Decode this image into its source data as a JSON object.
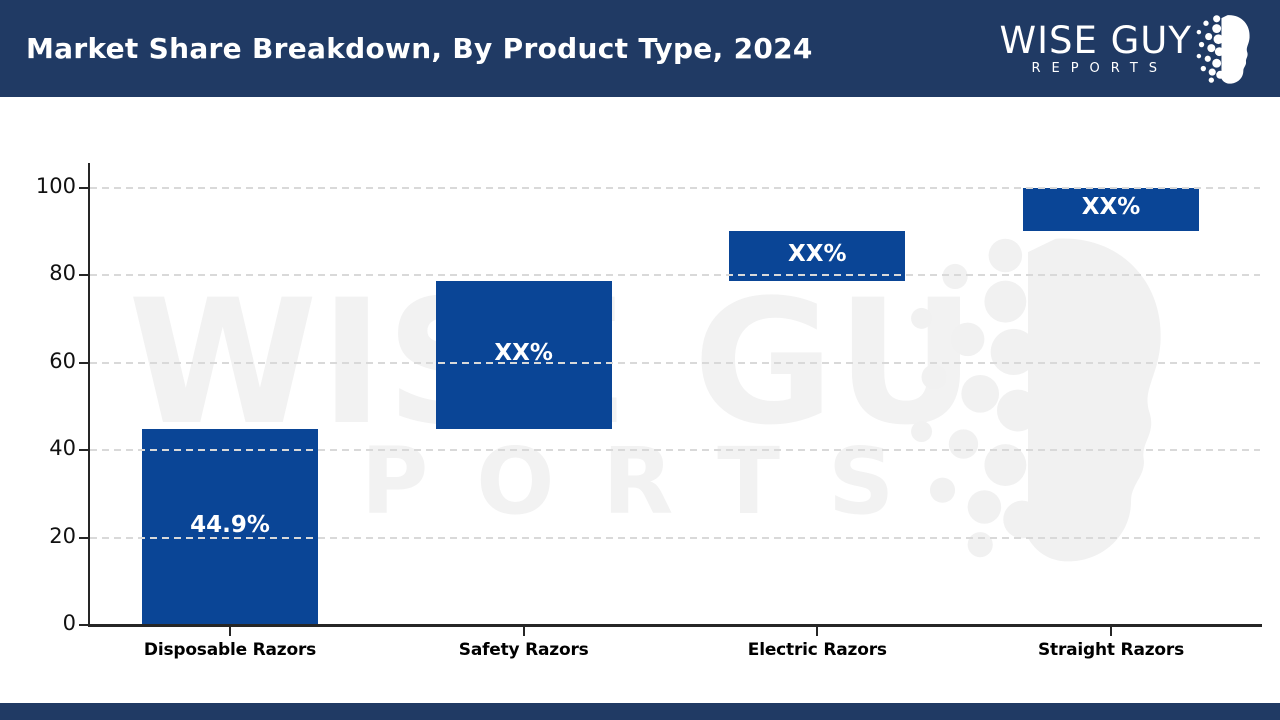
{
  "header": {
    "title": "Market Share Breakdown, By Product Type, 2024",
    "bg_color": "#203a64"
  },
  "logo": {
    "name_line": "WISE GUY",
    "reports_line": "REPORTS"
  },
  "watermark": {
    "line1": "WISE GU",
    "line2": "EPORTS"
  },
  "chart_data": {
    "type": "bar",
    "variant": "waterfall",
    "title": "Market Share Breakdown, By Product Type, 2024",
    "categories": [
      "Disposable Razors",
      "Safety Razors",
      "Electric Razors",
      "Straight Razors"
    ],
    "segments": [
      {
        "category": "Disposable Razors",
        "start": 0,
        "end": 44.9,
        "label": "44.9%"
      },
      {
        "category": "Safety Razors",
        "start": 44.9,
        "end": 78.7,
        "label": "XX%"
      },
      {
        "category": "Electric Razors",
        "start": 78.7,
        "end": 90.1,
        "label": "XX%"
      },
      {
        "category": "Straight Razors",
        "start": 90.1,
        "end": 100.1,
        "label": "XX%"
      }
    ],
    "xlabel": "",
    "ylabel": "",
    "yticks": [
      0,
      20,
      40,
      60,
      80,
      100
    ],
    "ylim": [
      0,
      105.7
    ],
    "grid": {
      "axis": "y",
      "style": "dashed",
      "color": "#d9d9d9"
    },
    "legend": "none",
    "bar_color": "#0a4596",
    "bar_label_color": "#ffffff",
    "axis_color": "#262626",
    "tick_label_color": "#111111"
  },
  "footer": {
    "bg_color": "#203a64"
  }
}
